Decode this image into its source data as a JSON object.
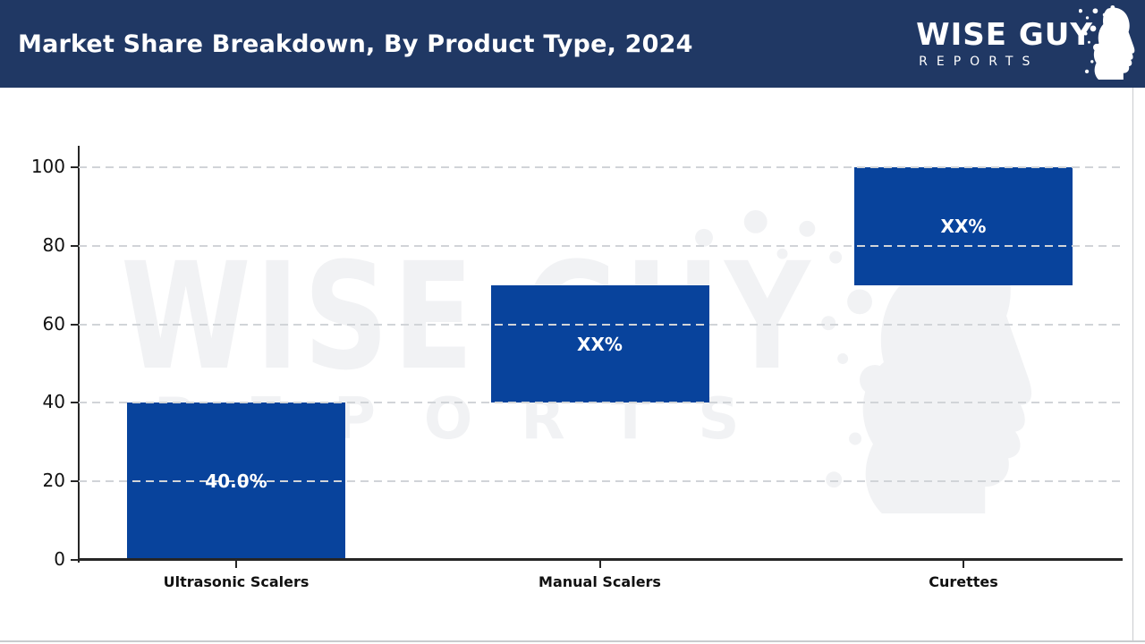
{
  "header": {
    "title": "Market Share Breakdown, By Product Type, 2024",
    "brand": {
      "line1": "WISE GUY",
      "line2": "REPORTS"
    }
  },
  "watermark": {
    "line1": "WISE GUY",
    "line2": "REPORTS"
  },
  "chart_data": {
    "type": "bar",
    "variant": "waterfall",
    "title": "Market Share Breakdown, By Product Type, 2024",
    "categories": [
      "Ultrasonic Scalers",
      "Manual Scalers",
      "Curettes"
    ],
    "series": [
      {
        "name": "Market share (%)",
        "segments": [
          {
            "category": "Ultrasonic Scalers",
            "start": 0,
            "end": 40,
            "label": "40.0%"
          },
          {
            "category": "Manual Scalers",
            "start": 40,
            "end": 70,
            "label": "XX%"
          },
          {
            "category": "Curettes",
            "start": 70,
            "end": 100,
            "label": "XX%"
          }
        ]
      }
    ],
    "xlabel": "",
    "ylabel": "",
    "ylim": [
      0,
      105
    ],
    "y_ticks": [
      0,
      20,
      40,
      60,
      80,
      100
    ],
    "grid": {
      "axis": "y",
      "style": "dashed",
      "drawn_above_bars": true
    },
    "legend": "none"
  },
  "colors": {
    "header_bg": "#203864",
    "bar": "#08439c",
    "grid": "#d1d4d8",
    "axis": "#262626",
    "text": "#111111",
    "watermark": "#f1f2f4",
    "canvas_edge": "#c9cbce"
  }
}
